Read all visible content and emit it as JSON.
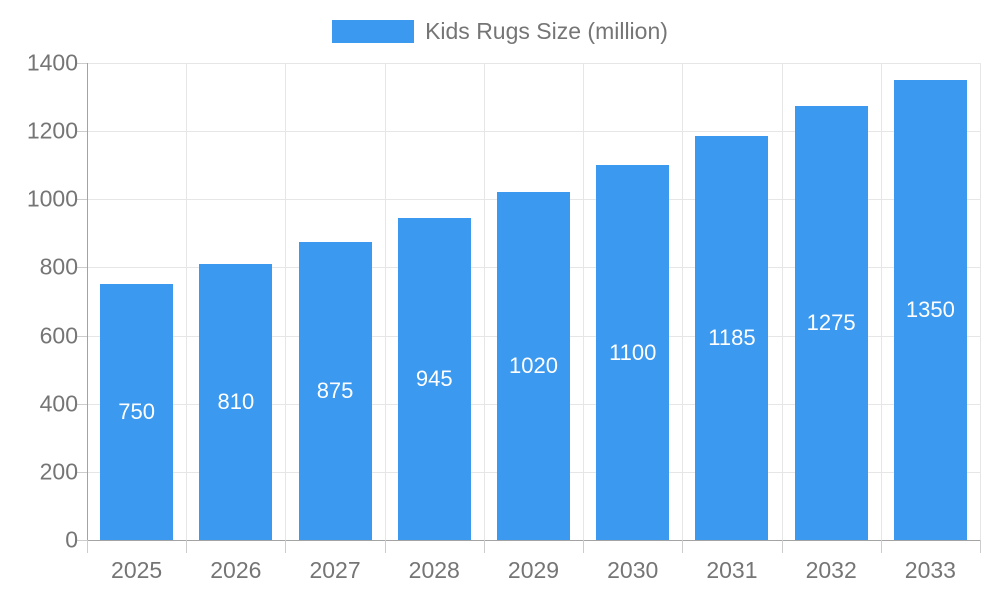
{
  "legend": {
    "label": "Kids Rugs Size (million)"
  },
  "chart_data": {
    "type": "bar",
    "title": "Kids Rugs Size (million)",
    "series_name": "Kids Rugs Size (million)",
    "categories": [
      "2025",
      "2026",
      "2027",
      "2028",
      "2029",
      "2030",
      "2031",
      "2032",
      "2033"
    ],
    "values": [
      750,
      810,
      875,
      945,
      1020,
      1100,
      1185,
      1275,
      1350
    ],
    "value_labels": [
      "750",
      "810",
      "875",
      "945",
      "1020",
      "1100",
      "1185",
      "1275",
      "1350"
    ],
    "xlabel": "",
    "ylabel": "",
    "ylim": [
      0,
      1400
    ],
    "ytick_step": 200,
    "yticks": [
      0,
      200,
      400,
      600,
      800,
      1000,
      1200,
      1400
    ],
    "grid": true,
    "legend_position": "top-center",
    "colors": {
      "bar": "#3b99f0",
      "bar_value_text": "#ffffff",
      "axis_text": "#757575",
      "gridline": "#e6e6e6",
      "axis_line": "#a3a3a3",
      "tick": "#cccccc"
    }
  }
}
